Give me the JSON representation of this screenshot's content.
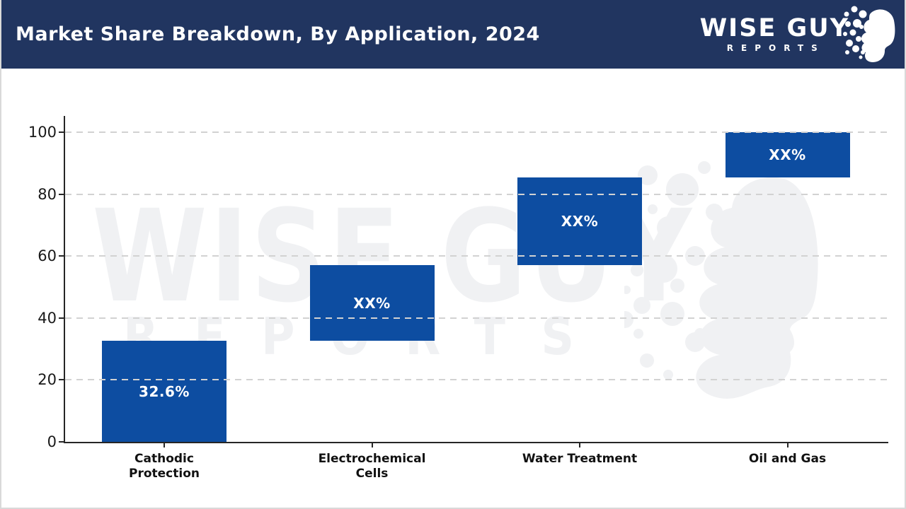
{
  "header": {
    "title": "Market Share Breakdown, By Application, 2024",
    "logo": {
      "line1": "WISE GUY",
      "line2": "REPORTS"
    }
  },
  "watermark": {
    "line1": "WISE GUY",
    "line2": "REPORTS"
  },
  "colors": {
    "header_navy": "#213560",
    "bar_blue": "#0d4da1",
    "grid_gray": "#d2d2d2",
    "axis_dark": "#262626",
    "watermark_gray": "#f0f1f3",
    "label_white": "#ffffff"
  },
  "chart_data": {
    "type": "bar",
    "subtype": "floating-waterfall",
    "title": "Market Share Breakdown, By Application, 2024",
    "categories": [
      "Cathodic Protection",
      "Electrochemical Cells",
      "Water Treatment",
      "Oil and Gas"
    ],
    "category_display": [
      "Cathodic\nProtection",
      "Electrochemical\nCells",
      "Water Treatment",
      "Oil and Gas"
    ],
    "segments": [
      {
        "category": "Cathodic Protection",
        "start": 0,
        "end": 32.6,
        "label": "32.6%"
      },
      {
        "category": "Electrochemical Cells",
        "start": 32.6,
        "end": 57.0,
        "label": "XX%"
      },
      {
        "category": "Water Treatment",
        "start": 57.0,
        "end": 85.5,
        "label": "XX%"
      },
      {
        "category": "Oil and Gas",
        "start": 85.5,
        "end": 100,
        "label": "XX%"
      }
    ],
    "ylim": [
      0,
      100
    ],
    "yticks": [
      0,
      20,
      40,
      60,
      80,
      100
    ],
    "xlabel": "",
    "ylabel": "",
    "grid": "horizontal-dashed",
    "legend": "none",
    "bar_color": "#0d4da1"
  }
}
